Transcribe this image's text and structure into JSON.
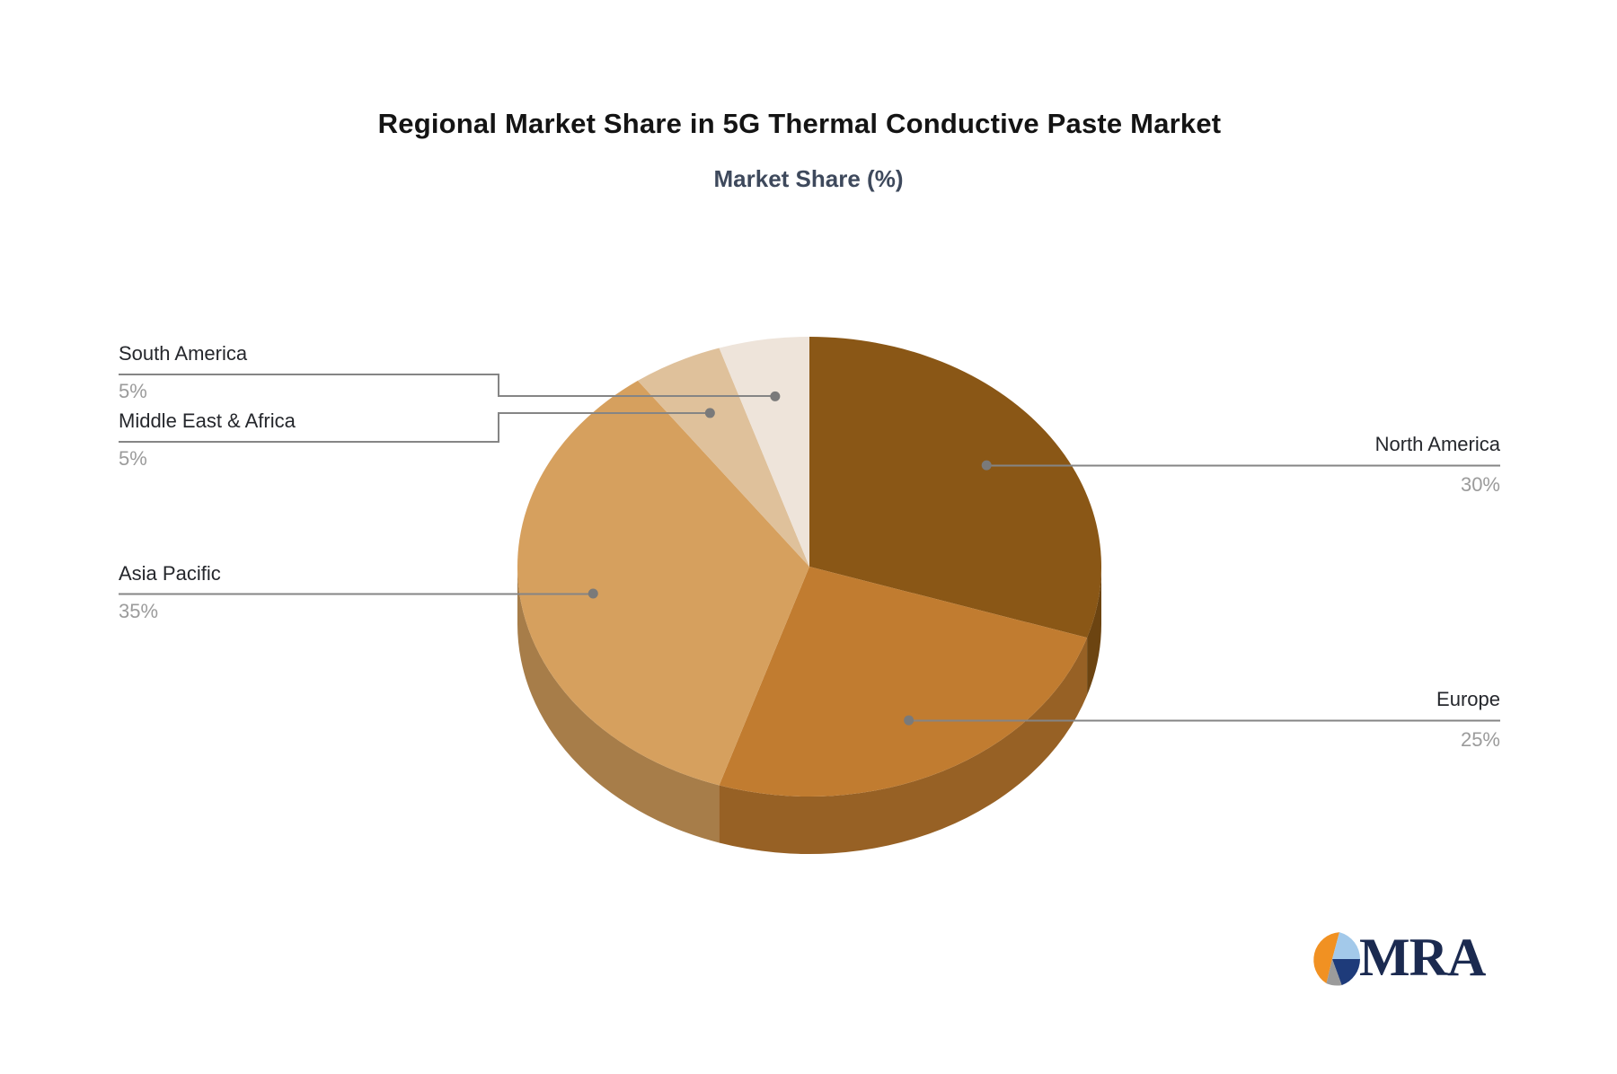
{
  "title": "Regional Market Share in 5G Thermal Conductive Paste Market",
  "subtitle": "Market Share (%)",
  "chart_data": {
    "type": "pie",
    "style": "3d",
    "title": "Regional Market Share in 5G Thermal Conductive Paste Market",
    "subtitle": "Market Share (%)",
    "unit": "%",
    "start_angle_deg": 0,
    "direction": "clockwise",
    "legend_position": "callout-labels",
    "slices": [
      {
        "label": "North America",
        "value": 30,
        "color": "#8a5716"
      },
      {
        "label": "Europe",
        "value": 25,
        "color": "#c17c30"
      },
      {
        "label": "Asia Pacific",
        "value": 35,
        "color": "#d6a05e"
      },
      {
        "label": "Middle East & Africa",
        "value": 5,
        "color": "#dfc19b"
      },
      {
        "label": "South America",
        "value": 5,
        "color": "#eee4da"
      }
    ]
  },
  "callouts": [
    {
      "name": "North America",
      "pct": "30%"
    },
    {
      "name": "Europe",
      "pct": "25%"
    },
    {
      "name": "Asia Pacific",
      "pct": "35%"
    },
    {
      "name": "Middle East & Africa",
      "pct": "5%"
    },
    {
      "name": "South America",
      "pct": "5%"
    }
  ],
  "logo": {
    "text": "MRA",
    "icon_colors": {
      "orange": "#f19122",
      "light_blue": "#a3c9ea",
      "navy": "#1e3b7a",
      "gray": "#9b9b9b"
    }
  },
  "colors": {
    "title_text": "#141414",
    "subtitle_text": "#3e495c",
    "label_text": "#25272c",
    "percent_text": "#9b9b9b",
    "connector_line": "#858585",
    "connector_dot": "#7a7a7a",
    "logo_text": "#1b2a50",
    "background": "#ffffff"
  }
}
